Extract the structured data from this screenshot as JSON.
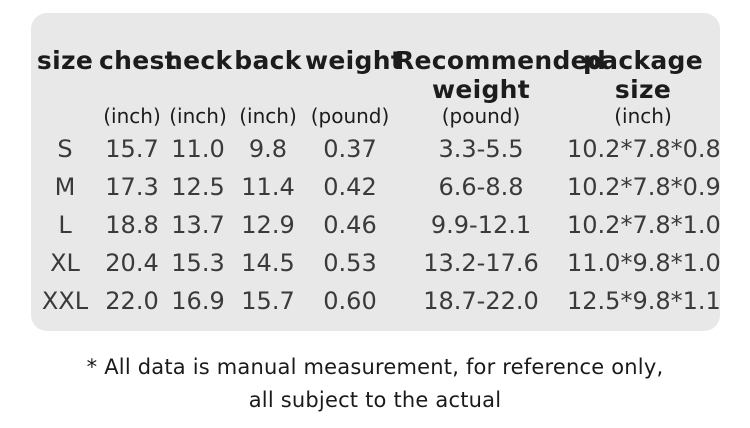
{
  "colors": {
    "page_bg": "#ffffff",
    "panel_bg": "#e8e8e8",
    "header_text": "#1c1c1c",
    "data_text": "#3a3a3a",
    "footnote_text": "#1a1a1a"
  },
  "chart_data": {
    "type": "table",
    "title": "",
    "columns": [
      {
        "key": "size",
        "label": "size",
        "sublabel": "",
        "unit": ""
      },
      {
        "key": "chest",
        "label": "chest",
        "sublabel": "",
        "unit": "(inch)"
      },
      {
        "key": "neck",
        "label": "neck",
        "sublabel": "",
        "unit": "(inch)"
      },
      {
        "key": "back",
        "label": "back",
        "sublabel": "",
        "unit": "(inch)"
      },
      {
        "key": "weight",
        "label": "weight",
        "sublabel": "",
        "unit": "(pound)"
      },
      {
        "key": "recommended_weight",
        "label": "Recommended",
        "sublabel": "weight",
        "unit": "(pound)"
      },
      {
        "key": "package_size",
        "label": "package",
        "sublabel": "size",
        "unit": "(inch)"
      }
    ],
    "rows": [
      {
        "size": "S",
        "chest": "15.7",
        "neck": "11.0",
        "back": "9.8",
        "weight": "0.37",
        "recommended_weight": "3.3-5.5",
        "package_size": "10.2*7.8*0.8"
      },
      {
        "size": "M",
        "chest": "17.3",
        "neck": "12.5",
        "back": "11.4",
        "weight": "0.42",
        "recommended_weight": "6.6-8.8",
        "package_size": "10.2*7.8*0.9"
      },
      {
        "size": "L",
        "chest": "18.8",
        "neck": "13.7",
        "back": "12.9",
        "weight": "0.46",
        "recommended_weight": "9.9-12.1",
        "package_size": "10.2*7.8*1.0"
      },
      {
        "size": "XL",
        "chest": "20.4",
        "neck": "15.3",
        "back": "14.5",
        "weight": "0.53",
        "recommended_weight": "13.2-17.6",
        "package_size": "11.0*9.8*1.0"
      },
      {
        "size": "XXL",
        "chest": "22.0",
        "neck": "16.9",
        "back": "15.7",
        "weight": "0.60",
        "recommended_weight": "18.7-22.0",
        "package_size": "12.5*9.8*1.1"
      }
    ]
  },
  "footnote": {
    "line1": "* All data is manual measurement, for reference only,",
    "line2": "all subject to the actual"
  }
}
